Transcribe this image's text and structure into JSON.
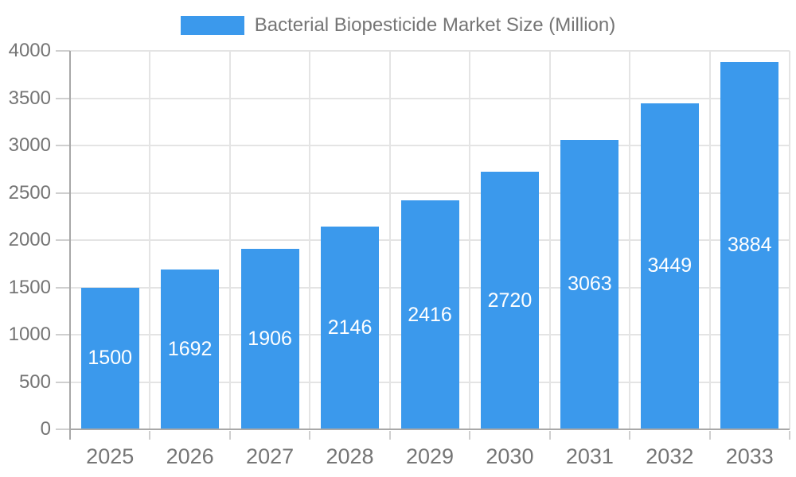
{
  "legend": {
    "label": "Bacterial Biopesticide Market Size (Million)"
  },
  "chart_data": {
    "type": "bar",
    "title": "Bacterial Biopesticide Market Size (Million)",
    "categories": [
      "2025",
      "2026",
      "2027",
      "2028",
      "2029",
      "2030",
      "2031",
      "2032",
      "2033"
    ],
    "values": [
      1500,
      1692,
      1906,
      2146,
      2416,
      2720,
      3063,
      3449,
      3884
    ],
    "xlabel": "",
    "ylabel": "",
    "ylim": [
      0,
      4000
    ],
    "ytick_step": 500,
    "ytick_labels": [
      "0",
      "500",
      "1000",
      "1500",
      "2000",
      "2500",
      "3000",
      "3500",
      "4000"
    ],
    "grid": true,
    "legend_position": "top-center",
    "value_labels": "inside-center",
    "colors": {
      "bar": "#3b99ec",
      "value_label": "#ffffff",
      "axis_text": "#757575",
      "axis_line": "#a8a8a8",
      "gridline": "#e4e4e4",
      "tick": "#cfcfcf",
      "background": "#ffffff"
    }
  }
}
